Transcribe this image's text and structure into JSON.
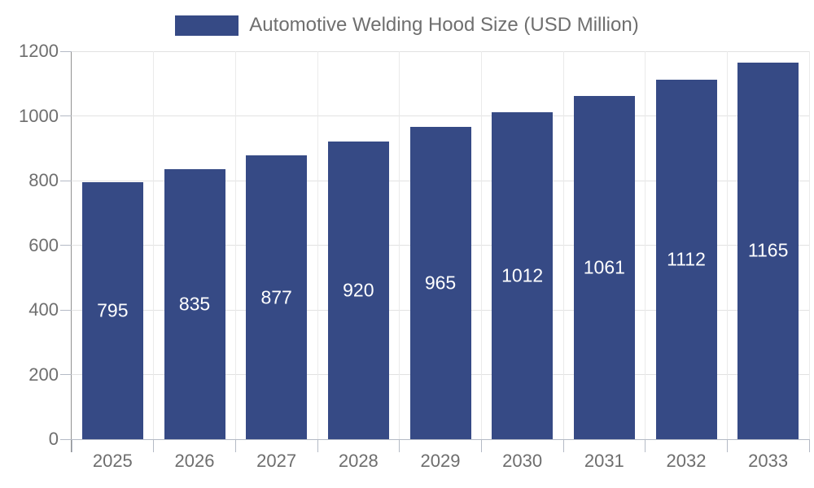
{
  "chart_data": {
    "type": "bar",
    "title": "Automotive Welding Hood Size (USD Million)",
    "categories": [
      "2025",
      "2026",
      "2027",
      "2028",
      "2029",
      "2030",
      "2031",
      "2032",
      "2033"
    ],
    "values": [
      795,
      835,
      877,
      920,
      965,
      1012,
      1061,
      1112,
      1165
    ],
    "xlabel": "",
    "ylabel": "",
    "ylim": [
      0,
      1200
    ],
    "yticks": [
      0,
      200,
      400,
      600,
      800,
      1000,
      1200
    ],
    "grid": true,
    "legend_position": "top-center",
    "colors": {
      "bar": "#364A85",
      "bar_label": "#FFFFFF",
      "axis_label": "#6E6E6E",
      "legend_text": "#6F6F6F",
      "grid_h": "#E2E2E2",
      "grid_v": "#EAEAEA",
      "y_axis_line": "#919191",
      "x_axis_line": "#B4BAC5",
      "tick": "#B4BAC5"
    }
  }
}
